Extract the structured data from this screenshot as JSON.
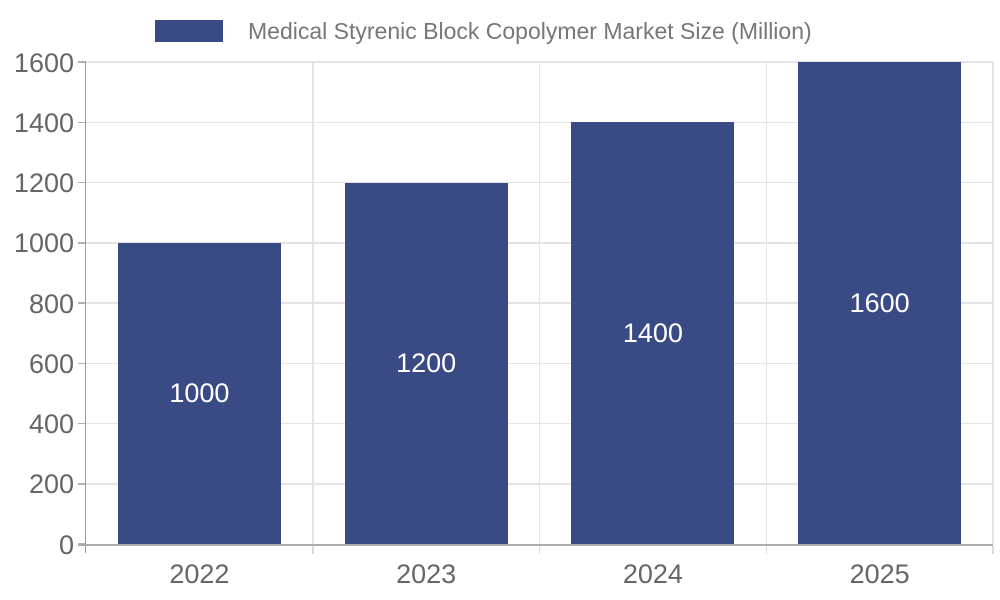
{
  "page": {
    "background": "#ffffff"
  },
  "legend": {
    "label": "Medical Styrenic Block Copolymer Market Size (Million)",
    "swatch_color": "#3A4A85"
  },
  "chart_data": {
    "type": "bar",
    "title": "Medical Styrenic Block Copolymer Market Size (Million)",
    "categories": [
      "2022",
      "2023",
      "2024",
      "2025"
    ],
    "values": [
      1000,
      1200,
      1400,
      1600
    ],
    "bar_labels": [
      "1000",
      "1200",
      "1400",
      "1600"
    ],
    "series": [
      {
        "name": "Medical Styrenic Block Copolymer Market Size (Million)",
        "values": [
          1000,
          1200,
          1400,
          1600
        ]
      }
    ],
    "xlabel": "",
    "ylabel": "",
    "ylim": [
      0,
      1600
    ],
    "yticks": [
      0,
      200,
      400,
      600,
      800,
      1000,
      1200,
      1400,
      1600
    ],
    "grid": true,
    "legend_position": "top-center",
    "colors": {
      "bar": "#3A4A85",
      "bar_label": "#ffffff",
      "axis_label": "#666666",
      "title_text": "#777777",
      "gridline": "#e3e3e8",
      "y_axis_line": "#999999",
      "x_axis_line": "#ababab",
      "x_tick": "#d9d9de",
      "y_tick": "#b0b0b5"
    }
  }
}
